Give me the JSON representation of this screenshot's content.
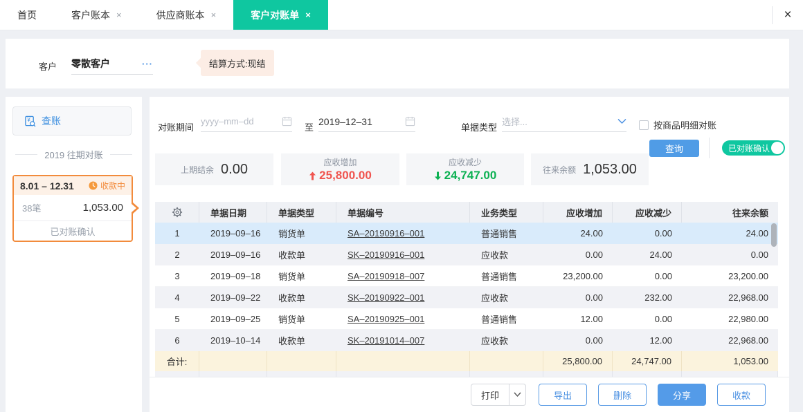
{
  "tabbar": {
    "tabs": [
      {
        "label": "首页",
        "closable": false,
        "active": false
      },
      {
        "label": "客户账本",
        "closable": true,
        "active": false
      },
      {
        "label": "供应商账本",
        "closable": true,
        "active": false
      },
      {
        "label": "客户对账单",
        "closable": true,
        "active": true
      }
    ],
    "close_icon": "×",
    "close_all_icon": "×"
  },
  "header": {
    "customer_label": "客户",
    "customer_value": "零散客户",
    "more_icon": "···",
    "settlement_tooltip": "结算方式:现结"
  },
  "sidebar": {
    "check_account_button": "查账",
    "section_title": "2019 往期对账",
    "period_card": {
      "period": "8.01 – 12.31",
      "status": "收款中",
      "count": "38笔",
      "amount": "1,053.00",
      "footer": "已对账确认"
    }
  },
  "filters": {
    "period_label": "对账期间",
    "date_from_placeholder": "yyyy–mm–dd",
    "to_label": "至",
    "date_to_value": "2019–12–31",
    "doc_type_label": "单据类型",
    "doc_type_placeholder": "选择...",
    "detail_checkbox_label": "按商品明细对账",
    "query_button": "查询",
    "confirm_toggle_label": "已对账确认"
  },
  "summary": {
    "cards": [
      {
        "label": "上期结余",
        "value": "0.00",
        "trend": "none"
      },
      {
        "label": "应收增加",
        "value": "25,800.00",
        "trend": "up",
        "color": "#f0544f"
      },
      {
        "label": "应收减少",
        "value": "24,747.00",
        "trend": "down",
        "color": "#0db153"
      },
      {
        "label": "往来余额",
        "value": "1,053.00",
        "trend": "none"
      }
    ]
  },
  "table": {
    "columns": [
      "单据日期",
      "单据类型",
      "单据编号",
      "业务类型",
      "应收增加",
      "应收减少",
      "往来余额"
    ],
    "rows": [
      {
        "num": "1",
        "date": "2019–09–16",
        "doc_type": "销货单",
        "doc_no": "SA–20190916–001",
        "biz_type": "普通销售",
        "increase": "24.00",
        "decrease": "0.00",
        "balance": "24.00",
        "selected": true
      },
      {
        "num": "2",
        "date": "2019–09–16",
        "doc_type": "收款单",
        "doc_no": "SK–20190916–001",
        "biz_type": "应收款",
        "increase": "0.00",
        "decrease": "24.00",
        "balance": "0.00",
        "selected": false
      },
      {
        "num": "3",
        "date": "2019–09–18",
        "doc_type": "销货单",
        "doc_no": "SA–20190918–007",
        "biz_type": "普通销售",
        "increase": "23,200.00",
        "decrease": "0.00",
        "balance": "23,200.00",
        "selected": false
      },
      {
        "num": "4",
        "date": "2019–09–22",
        "doc_type": "收款单",
        "doc_no": "SK–20190922–001",
        "biz_type": "应收款",
        "increase": "0.00",
        "decrease": "232.00",
        "balance": "22,968.00",
        "selected": false
      },
      {
        "num": "5",
        "date": "2019–09–25",
        "doc_type": "销货单",
        "doc_no": "SA–20190925–001",
        "biz_type": "普通销售",
        "increase": "12.00",
        "decrease": "0.00",
        "balance": "22,980.00",
        "selected": false
      },
      {
        "num": "6",
        "date": "2019–10–14",
        "doc_type": "收款单",
        "doc_no": "SK–20191014–007",
        "biz_type": "应收款",
        "increase": "0.00",
        "decrease": "12.00",
        "balance": "22,968.00",
        "selected": false
      }
    ],
    "total": {
      "label": "合计:",
      "increase": "25,800.00",
      "decrease": "24,747.00",
      "balance": "1,053.00"
    }
  },
  "footer": {
    "print_button": "打印",
    "export_button": "导出",
    "delete_button": "删除",
    "share_button": "分享",
    "receive_button": "收款"
  },
  "colors": {
    "accent_green": "#0fc7a0",
    "accent_blue": "#509ce6",
    "increase_red": "#f0544f",
    "decrease_green": "#0db153",
    "warning_orange": "#f28b3c",
    "selected_row": "#d9ebfb",
    "total_row_bg": "#fbf3dd"
  }
}
